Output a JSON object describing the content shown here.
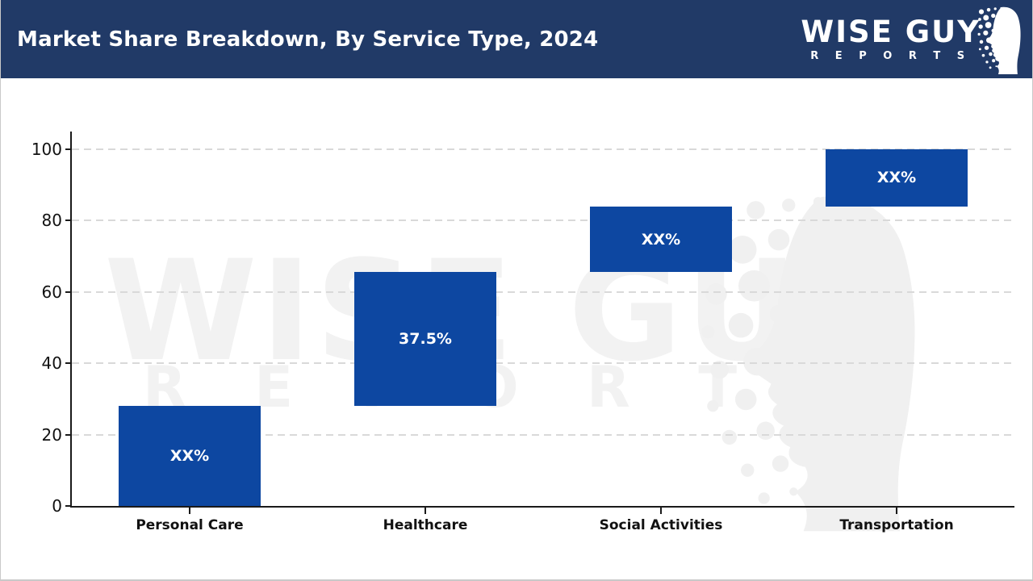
{
  "header": {
    "title": "Market Share Breakdown, By Service Type, 2024",
    "logo": {
      "wordmark": "WISE GUY",
      "subtext": "R E P O R T S"
    }
  },
  "watermark": {
    "wordmark": "WISE GUY",
    "subtext": "R E P O R T S"
  },
  "colors": {
    "header_bg": "#213a67",
    "bar": "#0d47a1",
    "bar_label": "#ffffff",
    "grid": "#d9d9d9",
    "axis": "#1a1a1a",
    "watermark": "#f2f2f2"
  },
  "chart_data": {
    "type": "bar",
    "subtype": "floating-waterfall",
    "title": "Market Share Breakdown, By Service Type, 2024",
    "categories": [
      "Personal Care",
      "Healthcare",
      "Social Activities",
      "Transportation"
    ],
    "segments": [
      {
        "category": "Personal Care",
        "start": 0,
        "end": 28,
        "value": 28,
        "label": "XX%"
      },
      {
        "category": "Healthcare",
        "start": 28,
        "end": 65.5,
        "value": 37.5,
        "label": "37.5%"
      },
      {
        "category": "Social Activities",
        "start": 65.5,
        "end": 84,
        "value": 18.5,
        "label": "XX%"
      },
      {
        "category": "Transportation",
        "start": 84,
        "end": 100,
        "value": 16,
        "label": "XX%"
      }
    ],
    "xlabel": "",
    "ylabel": "",
    "ylim": [
      0,
      100
    ],
    "yticks": [
      0,
      20,
      40,
      60,
      80,
      100
    ],
    "grid": "dashed-horizontal",
    "legend": "none"
  }
}
